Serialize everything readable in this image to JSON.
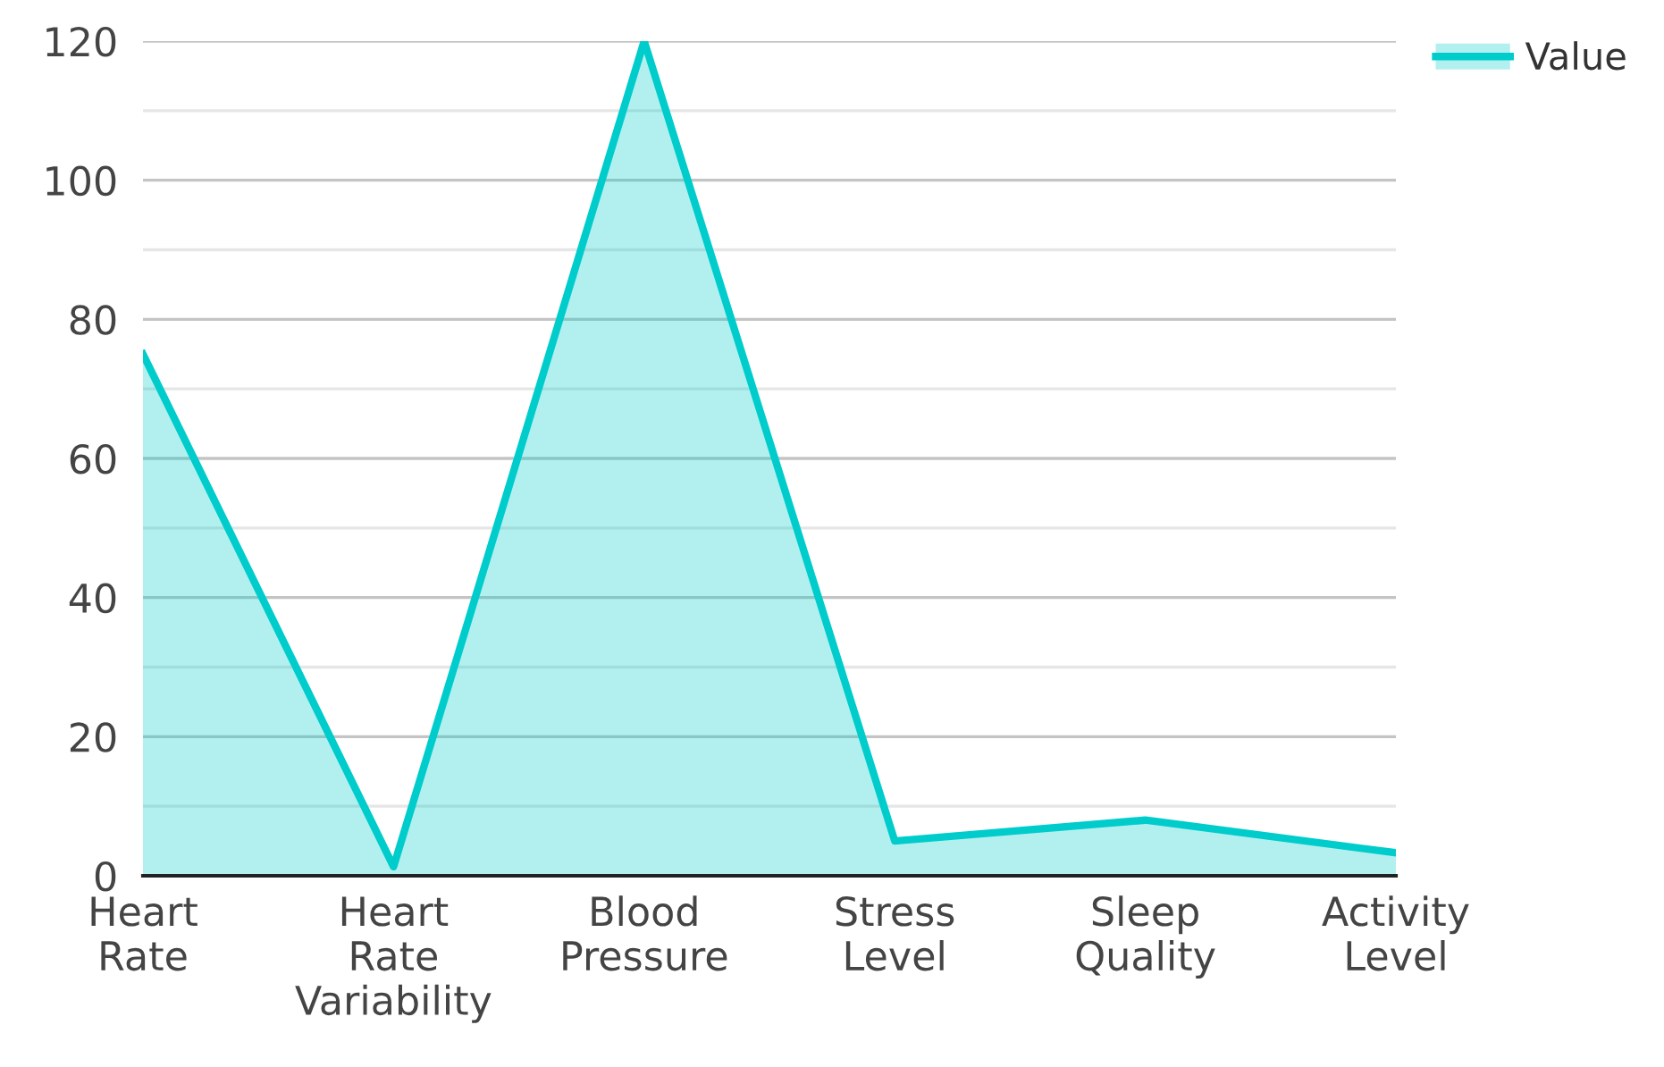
{
  "chart_data": {
    "type": "area",
    "categories": [
      "Heart\nRate",
      "Heart\nRate\nVariability",
      "Blood\nPressure",
      "Stress\nLevel",
      "Sleep\nQuality",
      "Activity\nLevel"
    ],
    "series": [
      {
        "name": "Value",
        "color": "#00cccc",
        "values": [
          75,
          1.3,
          120,
          5,
          8,
          3.3
        ]
      }
    ],
    "ylim": [
      0,
      120
    ],
    "yticks": [
      0,
      20,
      40,
      60,
      80,
      100,
      120
    ],
    "grid": "y",
    "legend": "top right"
  }
}
